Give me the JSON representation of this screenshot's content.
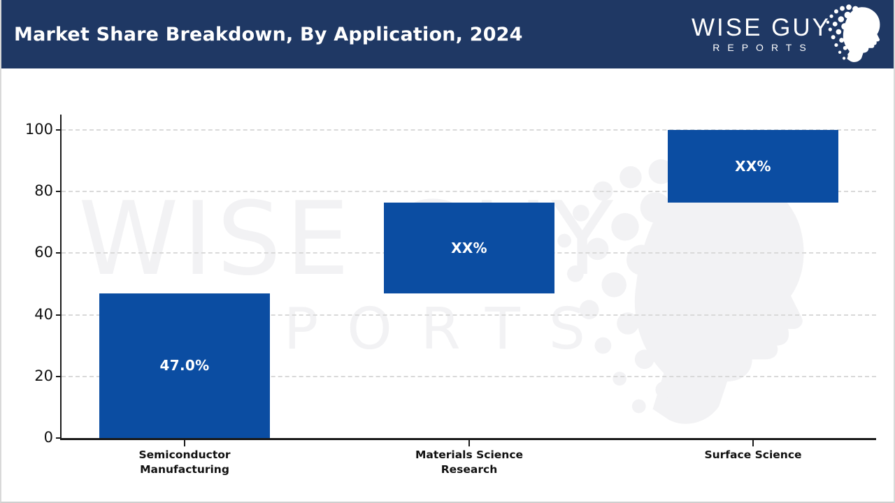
{
  "header": {
    "title": "Market Share Breakdown, By Application, 2024",
    "logo": {
      "line1": "WISE GUY",
      "line2": "REPORTS"
    }
  },
  "watermark": {
    "line1": "WISE GUY",
    "line2": "REPORTS"
  },
  "chart_data": {
    "type": "bar",
    "subtype": "waterfall",
    "title": "Market Share Breakdown, By Application, 2024",
    "year": "2024",
    "categories": [
      "Semiconductor Manufacturing",
      "Materials Science Research",
      "Surface Science"
    ],
    "category_lines": [
      [
        "Semiconductor",
        "Manufacturing"
      ],
      [
        "Materials Science",
        "Research"
      ],
      [
        "Surface Science"
      ]
    ],
    "segments": [
      {
        "category": "Semiconductor Manufacturing",
        "start": 0,
        "end": 47,
        "label": "47.0%"
      },
      {
        "category": "Materials Science Research",
        "start": 47,
        "end": 76.5,
        "label": "XX%"
      },
      {
        "category": "Surface Science",
        "start": 76.5,
        "end": 100,
        "label": "XX%"
      }
    ],
    "bar_labels": [
      "47.0%",
      "XX%",
      "XX%"
    ],
    "yticks": [
      0,
      20,
      40,
      60,
      80,
      100
    ],
    "ylim": [
      0,
      105
    ],
    "xlabel": "",
    "ylabel": "",
    "grid": "horizontal-dashed",
    "legend": "none",
    "colors": {
      "bar": "#0b4da2",
      "header_bg": "#1f3864",
      "gridline": "#d9d9d9",
      "axis": "#1a1a1a",
      "bar_label_text": "#ffffff",
      "watermark": "#f2f2f4"
    }
  }
}
